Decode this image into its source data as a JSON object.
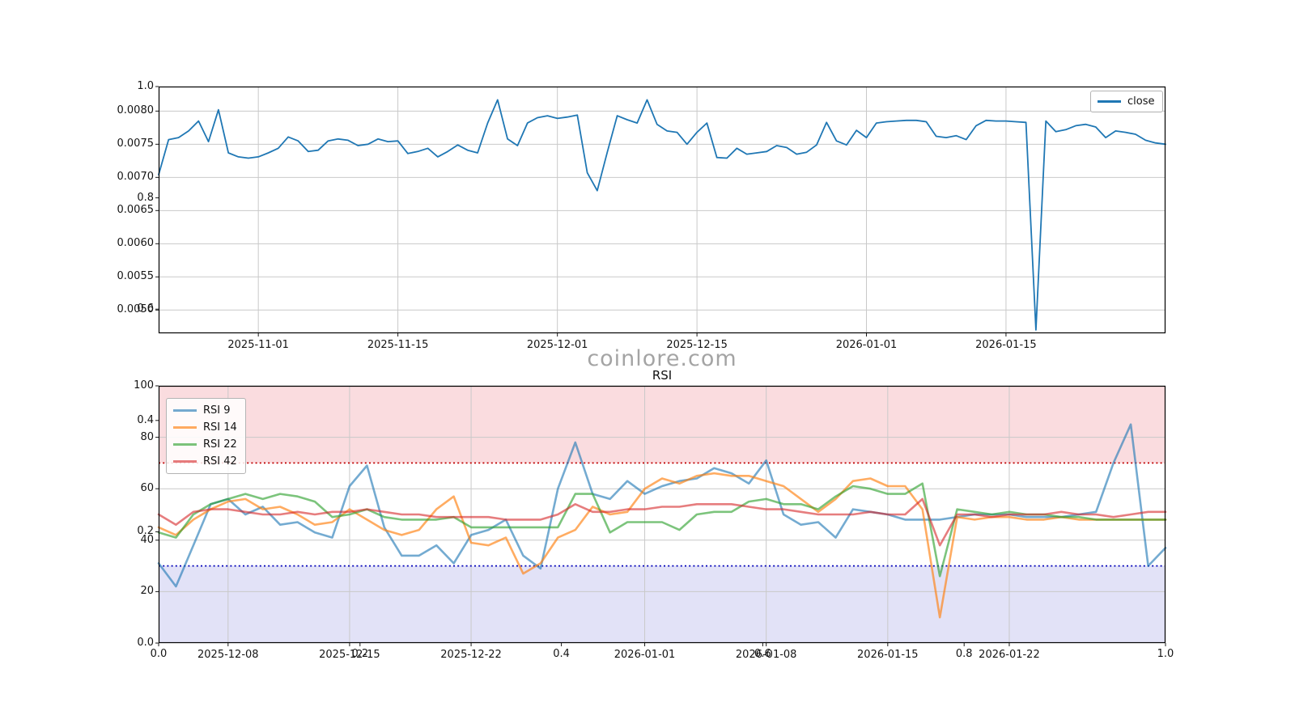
{
  "watermark": "coinlore.com",
  "overlay_axis": {
    "left_labels": [
      "1.0",
      "0.8",
      "0.6",
      "0.4",
      "0.2",
      "0.0"
    ],
    "bottom_labels": [
      "0.0",
      "0.2",
      "0.4",
      "0.6",
      "0.8",
      "1.0"
    ]
  },
  "chart_data": [
    {
      "id": "price",
      "type": "line",
      "title": "",
      "legend_position": "upper right",
      "grid": true,
      "ylim": [
        0.00465,
        0.00837
      ],
      "yticks": [
        {
          "label": "0.0080",
          "value": 0.008
        },
        {
          "label": "0.0075",
          "value": 0.0075
        },
        {
          "label": "0.0070",
          "value": 0.007
        },
        {
          "label": "0.0065",
          "value": 0.0065
        },
        {
          "label": "0.0060",
          "value": 0.006
        },
        {
          "label": "0.0055",
          "value": 0.0055
        },
        {
          "label": "0.0050",
          "value": 0.005
        }
      ],
      "xticks": [
        "2025-11-01",
        "2025-11-15",
        "2025-12-01",
        "2025-12-15",
        "2026-01-01",
        "2026-01-15"
      ],
      "dates": [
        "2025-10-22",
        "2025-10-23",
        "2025-10-24",
        "2025-10-25",
        "2025-10-26",
        "2025-10-27",
        "2025-10-28",
        "2025-10-29",
        "2025-10-30",
        "2025-10-31",
        "2025-11-01",
        "2025-11-02",
        "2025-11-03",
        "2025-11-04",
        "2025-11-05",
        "2025-11-06",
        "2025-11-07",
        "2025-11-08",
        "2025-11-09",
        "2025-11-10",
        "2025-11-11",
        "2025-11-12",
        "2025-11-13",
        "2025-11-14",
        "2025-11-15",
        "2025-11-16",
        "2025-11-17",
        "2025-11-18",
        "2025-11-19",
        "2025-11-20",
        "2025-11-21",
        "2025-11-22",
        "2025-11-23",
        "2025-11-24",
        "2025-11-25",
        "2025-11-26",
        "2025-11-27",
        "2025-11-28",
        "2025-11-29",
        "2025-11-30",
        "2025-12-01",
        "2025-12-02",
        "2025-12-03",
        "2025-12-04",
        "2025-12-05",
        "2025-12-06",
        "2025-12-07",
        "2025-12-08",
        "2025-12-09",
        "2025-12-10",
        "2025-12-11",
        "2025-12-12",
        "2025-12-13",
        "2025-12-14",
        "2025-12-15",
        "2025-12-16",
        "2025-12-17",
        "2025-12-18",
        "2025-12-19",
        "2025-12-20",
        "2025-12-21",
        "2025-12-22",
        "2025-12-23",
        "2025-12-24",
        "2025-12-25",
        "2025-12-26",
        "2025-12-27",
        "2025-12-28",
        "2025-12-29",
        "2025-12-30",
        "2025-12-31",
        "2026-01-01",
        "2026-01-02",
        "2026-01-03",
        "2026-01-04",
        "2026-01-05",
        "2026-01-06",
        "2026-01-07",
        "2026-01-08",
        "2026-01-09",
        "2026-01-10",
        "2026-01-11",
        "2026-01-12",
        "2026-01-13",
        "2026-01-14",
        "2026-01-15",
        "2026-01-16",
        "2026-01-17",
        "2026-01-18",
        "2026-01-19",
        "2026-01-20",
        "2026-01-21",
        "2026-01-22",
        "2026-01-23",
        "2026-01-24",
        "2026-01-25",
        "2026-01-26",
        "2026-01-27",
        "2026-01-28",
        "2026-01-29",
        "2026-01-30",
        "2026-01-31"
      ],
      "series": [
        {
          "name": "close",
          "color": "#1f77b4",
          "values": [
            0.00704,
            0.00757,
            0.0076,
            0.0077,
            0.00785,
            0.00754,
            0.00802,
            0.00737,
            0.00731,
            0.00729,
            0.00731,
            0.00737,
            0.00744,
            0.00761,
            0.00755,
            0.00739,
            0.00741,
            0.00755,
            0.00758,
            0.00756,
            0.00748,
            0.0075,
            0.00758,
            0.00754,
            0.00755,
            0.00736,
            0.00739,
            0.00744,
            0.00731,
            0.00739,
            0.00749,
            0.00741,
            0.00737,
            0.00782,
            0.00817,
            0.00758,
            0.00748,
            0.00782,
            0.0079,
            0.00793,
            0.00789,
            0.00791,
            0.00794,
            0.00707,
            0.0068,
            0.00738,
            0.00793,
            0.00787,
            0.00782,
            0.00817,
            0.0078,
            0.0077,
            0.00768,
            0.0075,
            0.00768,
            0.00782,
            0.0073,
            0.00729,
            0.00744,
            0.00735,
            0.00737,
            0.00739,
            0.00748,
            0.00745,
            0.00735,
            0.00738,
            0.00749,
            0.00783,
            0.00755,
            0.00749,
            0.00771,
            0.0076,
            0.00782,
            0.00784,
            0.00785,
            0.00786,
            0.00786,
            0.00784,
            0.00762,
            0.0076,
            0.00763,
            0.00757,
            0.00778,
            0.00786,
            0.00785,
            0.00785,
            0.00784,
            0.00783,
            0.0047,
            0.00785,
            0.00769,
            0.00772,
            0.00778,
            0.0078,
            0.00776,
            0.0076,
            0.0077,
            0.00768,
            0.00765,
            0.00756,
            0.00752,
            0.0075
          ]
        }
      ]
    },
    {
      "id": "rsi",
      "type": "line",
      "title": "RSI",
      "legend_position": "upper left",
      "grid": true,
      "ylim": [
        0,
        100
      ],
      "yticks": [
        {
          "label": "100",
          "value": 100
        },
        {
          "label": "80",
          "value": 80
        },
        {
          "label": "60",
          "value": 60
        },
        {
          "label": "40",
          "value": 40
        },
        {
          "label": "20",
          "value": 20
        }
      ],
      "xticks": [
        "2025-12-08",
        "2025-12-15",
        "2025-12-22",
        "2026-01-01",
        "2026-01-08",
        "2026-01-15",
        "2026-01-22"
      ],
      "overbought": {
        "value": 70,
        "line_color": "#c00000",
        "band_color": "#fadcdf"
      },
      "oversold": {
        "value": 30,
        "line_color": "#0000b8",
        "band_color": "#e2e2f7"
      },
      "dates": [
        "2025-12-04",
        "2025-12-05",
        "2025-12-06",
        "2025-12-07",
        "2025-12-08",
        "2025-12-09",
        "2025-12-10",
        "2025-12-11",
        "2025-12-12",
        "2025-12-13",
        "2025-12-14",
        "2025-12-15",
        "2025-12-16",
        "2025-12-17",
        "2025-12-18",
        "2025-12-19",
        "2025-12-20",
        "2025-12-21",
        "2025-12-22",
        "2025-12-23",
        "2025-12-24",
        "2025-12-25",
        "2025-12-26",
        "2025-12-27",
        "2025-12-28",
        "2025-12-29",
        "2025-12-30",
        "2025-12-31",
        "2026-01-01",
        "2026-01-02",
        "2026-01-03",
        "2026-01-04",
        "2026-01-05",
        "2026-01-06",
        "2026-01-07",
        "2026-01-08",
        "2026-01-09",
        "2026-01-10",
        "2026-01-11",
        "2026-01-12",
        "2026-01-13",
        "2026-01-14",
        "2026-01-15",
        "2026-01-16",
        "2026-01-17",
        "2026-01-18",
        "2026-01-19",
        "2026-01-20",
        "2026-01-21",
        "2026-01-22",
        "2026-01-23",
        "2026-01-24",
        "2026-01-25",
        "2026-01-26",
        "2026-01-27",
        "2026-01-28",
        "2026-01-29",
        "2026-01-30",
        "2026-01-31"
      ],
      "series": [
        {
          "name": "RSI 9",
          "color": "rgba(31,119,180,0.62)",
          "values": [
            31,
            22,
            38,
            54,
            56,
            50,
            53,
            46,
            47,
            43,
            41,
            61,
            69,
            45,
            34,
            34,
            38,
            31,
            42,
            44,
            48,
            34,
            29,
            60,
            78,
            58,
            56,
            63,
            58,
            61,
            63,
            64,
            68,
            66,
            62,
            71,
            50,
            46,
            47,
            41,
            52,
            51,
            50,
            48,
            48,
            48,
            49,
            50,
            50,
            50,
            49,
            49,
            49,
            50,
            51,
            70,
            85,
            30,
            37
          ]
        },
        {
          "name": "RSI 14",
          "color": "rgba(255,127,14,0.65)",
          "values": [
            45,
            42,
            48,
            52,
            55,
            56,
            52,
            53,
            50,
            46,
            47,
            52,
            48,
            44,
            42,
            44,
            52,
            57,
            39,
            38,
            41,
            27,
            31,
            41,
            44,
            53,
            50,
            51,
            60,
            64,
            62,
            65,
            66,
            65,
            65,
            63,
            61,
            56,
            51,
            56,
            63,
            64,
            61,
            61,
            52,
            10,
            49,
            48,
            49,
            49,
            48,
            48,
            49,
            48,
            48,
            48,
            48,
            48,
            48
          ]
        },
        {
          "name": "RSI 22",
          "color": "rgba(44,160,44,0.62)",
          "values": [
            43,
            41,
            50,
            54,
            56,
            58,
            56,
            58,
            57,
            55,
            49,
            50,
            52,
            49,
            48,
            48,
            48,
            49,
            45,
            45,
            45,
            45,
            45,
            45,
            58,
            58,
            43,
            47,
            47,
            47,
            44,
            50,
            51,
            51,
            55,
            56,
            54,
            54,
            52,
            57,
            61,
            60,
            58,
            58,
            62,
            26,
            52,
            51,
            50,
            51,
            50,
            50,
            49,
            49,
            48,
            48,
            48,
            48,
            48
          ]
        },
        {
          "name": "RSI 42",
          "color": "rgba(214,39,40,0.60)",
          "values": [
            50,
            46,
            51,
            52,
            52,
            51,
            50,
            50,
            51,
            50,
            51,
            51,
            52,
            51,
            50,
            50,
            49,
            49,
            49,
            49,
            48,
            48,
            48,
            50,
            54,
            51,
            51,
            52,
            52,
            53,
            53,
            54,
            54,
            54,
            53,
            52,
            52,
            51,
            50,
            50,
            50,
            51,
            50,
            50,
            56,
            38,
            50,
            50,
            49,
            50,
            50,
            50,
            51,
            50,
            50,
            49,
            50,
            51,
            51
          ]
        }
      ]
    }
  ]
}
